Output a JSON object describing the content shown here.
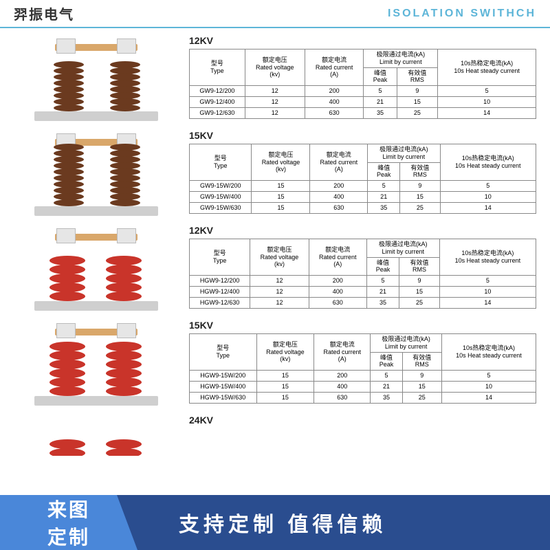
{
  "header": {
    "logo": "羿振电气",
    "title": "ISOLATION SWITHCH"
  },
  "sections": [
    {
      "voltage": "12KV",
      "color": "brown",
      "discCount": 8,
      "discBig": false,
      "rows": [
        {
          "type": "GW9-12/200",
          "kv": "12",
          "a": "200",
          "peak": "5",
          "rms": "9",
          "heat": "5"
        },
        {
          "type": "GW9-12/400",
          "kv": "12",
          "a": "400",
          "peak": "21",
          "rms": "15",
          "heat": "10"
        },
        {
          "type": "GW9-12/630",
          "kv": "12",
          "a": "630",
          "peak": "35",
          "rms": "25",
          "heat": "14"
        }
      ]
    },
    {
      "voltage": "15KV",
      "color": "brown",
      "discCount": 10,
      "discBig": false,
      "rows": [
        {
          "type": "GW9-15W/200",
          "kv": "15",
          "a": "200",
          "peak": "5",
          "rms": "9",
          "heat": "5"
        },
        {
          "type": "GW9-15W/400",
          "kv": "15",
          "a": "400",
          "peak": "21",
          "rms": "15",
          "heat": "10"
        },
        {
          "type": "GW9-15W/630",
          "kv": "15",
          "a": "630",
          "peak": "35",
          "rms": "25",
          "heat": "14"
        }
      ]
    },
    {
      "voltage": "12KV",
      "color": "red",
      "discCount": 5,
      "discBig": true,
      "rows": [
        {
          "type": "HGW9-12/200",
          "kv": "12",
          "a": "200",
          "peak": "5",
          "rms": "9",
          "heat": "5"
        },
        {
          "type": "HGW9-12/400",
          "kv": "12",
          "a": "400",
          "peak": "21",
          "rms": "15",
          "heat": "10"
        },
        {
          "type": "HGW9-12/630",
          "kv": "12",
          "a": "630",
          "peak": "35",
          "rms": "25",
          "heat": "14"
        }
      ]
    },
    {
      "voltage": "15KV",
      "color": "red",
      "discCount": 6,
      "discBig": true,
      "rows": [
        {
          "type": "HGW9-15W/200",
          "kv": "15",
          "a": "200",
          "peak": "5",
          "rms": "9",
          "heat": "5"
        },
        {
          "type": "HGW9-15W/400",
          "kv": "15",
          "a": "400",
          "peak": "21",
          "rms": "15",
          "heat": "10"
        },
        {
          "type": "HGW9-15W/630",
          "kv": "15",
          "a": "630",
          "peak": "35",
          "rms": "25",
          "heat": "14"
        }
      ]
    }
  ],
  "last_voltage": "24KV",
  "tableHeaders": {
    "type1": "型号",
    "type2": "Type",
    "kv1": "额定电压",
    "kv2": "Rated voltage",
    "kv3": "(kv)",
    "a1": "额定电流",
    "a2": "Rated current",
    "a3": "(A)",
    "limit1": "极限通过电流(kA)",
    "limit2": "Limit by current",
    "peak1": "峰值",
    "peak2": "Peak",
    "rms1": "有效值",
    "rms2": "RMS",
    "heat1": "10s热稳定电流(kA)",
    "heat2": "10s Heat steady current"
  },
  "footer": {
    "left1": "来图",
    "left2": "定制",
    "right": "支持定制 值得信赖"
  },
  "colors": {
    "header_accent": "#5db5d8",
    "footer_bg": "#2a4d8f",
    "footer_left_bg": "#4a87d9",
    "brown": "#6b3a1f",
    "red": "#c9342a"
  }
}
